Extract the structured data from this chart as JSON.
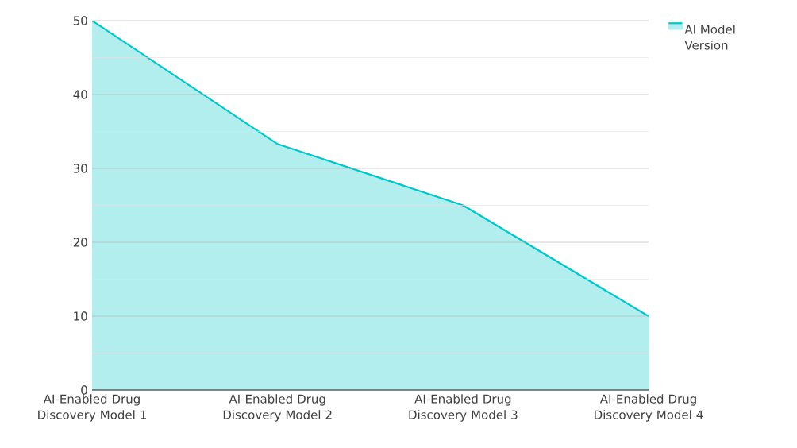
{
  "chart_data": {
    "type": "area",
    "categories": [
      "AI-Enabled Drug Discovery Model 1",
      "AI-Enabled Drug Discovery Model 2",
      "AI-Enabled Drug Discovery Model 3",
      "AI-Enabled Drug Discovery Model 4"
    ],
    "series": [
      {
        "name": "AI Model Version",
        "color": "#00c8c8",
        "values": [
          50,
          33.3,
          25,
          10
        ]
      }
    ],
    "ylim": [
      0,
      50
    ],
    "yticks": [
      0,
      10,
      20,
      30,
      40,
      50
    ],
    "grid": "y",
    "legend": "top right"
  }
}
